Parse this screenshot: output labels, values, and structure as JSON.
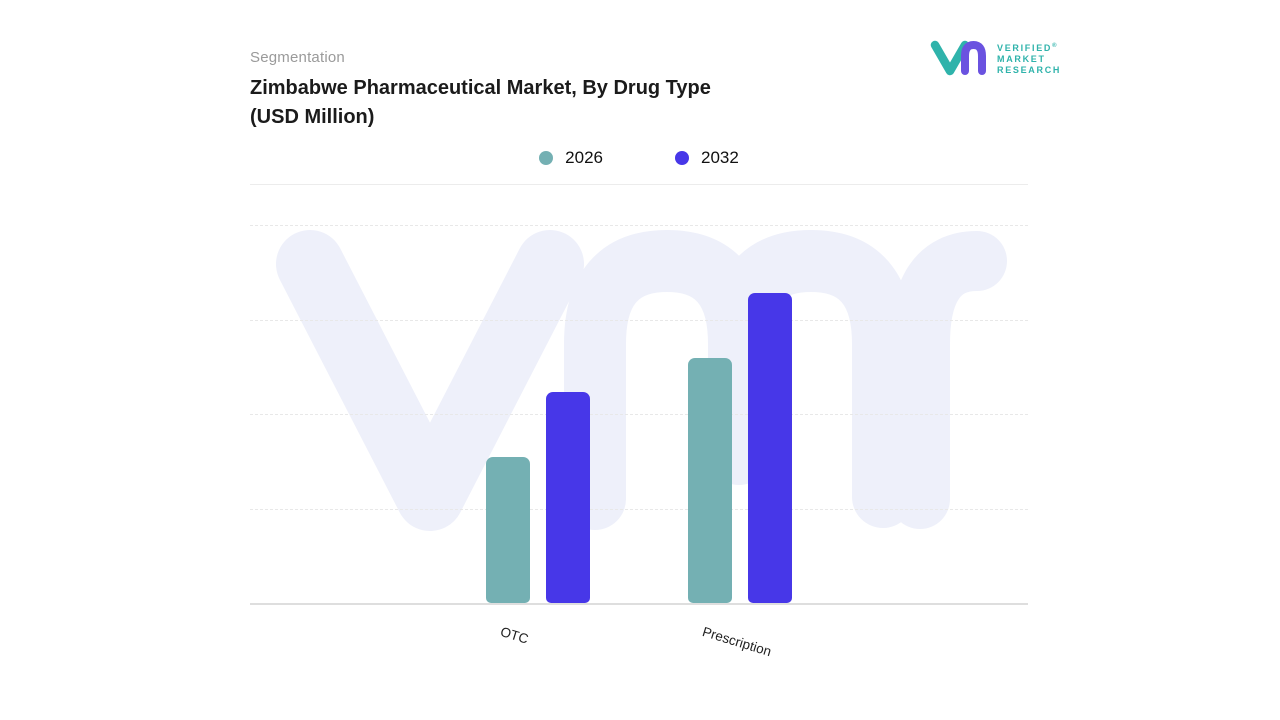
{
  "header": {
    "eyebrow": "Segmentation",
    "title_line1": "Zimbabwe Pharmaceutical Market, By Drug Type",
    "title_line2": "(USD Million)"
  },
  "logo": {
    "lines": [
      "VERIFIED",
      "MARKET",
      "RESEARCH"
    ],
    "registered_mark": "®",
    "mark_teal": "#2fb3ab",
    "mark_purple": "#6a52e0",
    "text_color": "#2fb3ab"
  },
  "legend": {
    "items": [
      {
        "label": "2026",
        "color": "#74b0b3"
      },
      {
        "label": "2032",
        "color": "#4737e8"
      }
    ]
  },
  "chart_data": {
    "type": "bar",
    "title": "Zimbabwe Pharmaceutical Market, By Drug Type (USD Million)",
    "categories": [
      "OTC",
      "Prescription"
    ],
    "series": [
      {
        "name": "2026",
        "color": "#74b0b3",
        "values": [
          47,
          79
        ]
      },
      {
        "name": "2032",
        "color": "#4737e8",
        "values": [
          68,
          100
        ]
      }
    ],
    "xlabel": "",
    "ylabel": "USD Million",
    "ylim": [
      0,
      100
    ],
    "grid": "horizontal-dashed",
    "legend_position": "top-center",
    "y_axis_labels_visible": false,
    "value_labels_visible": false
  },
  "watermark": {
    "icon": "vmr-logo-watermark",
    "color": "#eef0fa"
  }
}
